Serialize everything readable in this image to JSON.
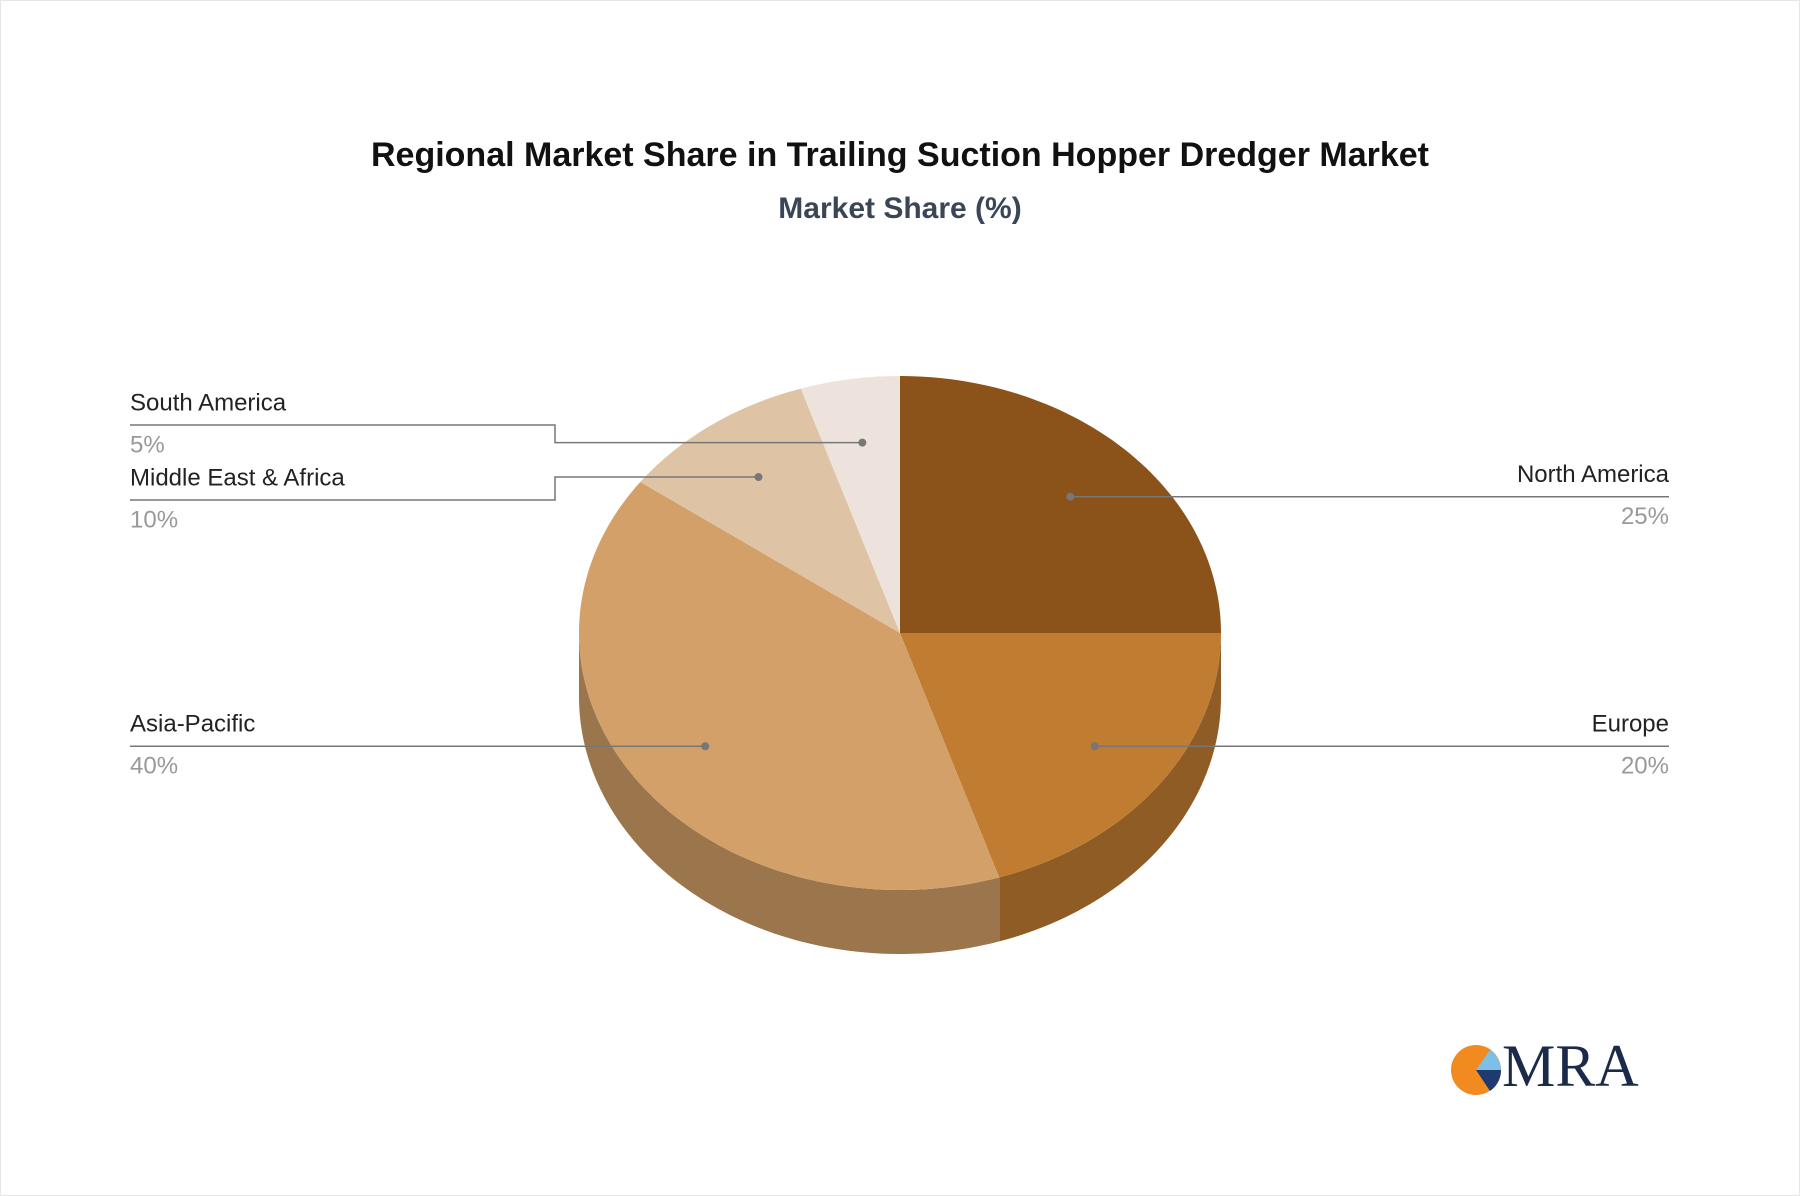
{
  "chart_data": {
    "type": "pie",
    "title": "Regional Market Share in Trailing Suction Hopper Dredger Market",
    "subtitle": "Market Share (%)",
    "categories": [
      "North America",
      "Europe",
      "Asia-Pacific",
      "Middle East & Africa",
      "South America"
    ],
    "values": [
      25,
      20,
      40,
      10,
      5
    ],
    "value_labels": [
      "25%",
      "20%",
      "40%",
      "10%",
      "5%"
    ],
    "colors": [
      "#8b5219",
      "#c07c30",
      "#d2a068",
      "#dec3a4",
      "#eee3dc"
    ]
  },
  "logo": {
    "text": "MRA"
  }
}
